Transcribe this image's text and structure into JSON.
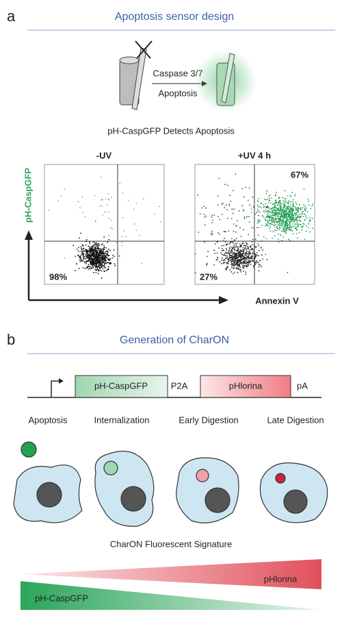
{
  "panel_a": {
    "label": "a",
    "title": "Apoptosis sensor design",
    "arrow_top": "Caspase 3/7",
    "arrow_bottom": "Apoptosis",
    "caption": "pH-CaspGFP Detects Apoptosis",
    "y_axis": "pH-CaspGFP",
    "x_axis": "Annexin V",
    "plots": [
      {
        "title": "-UV",
        "lower_label": "98%"
      },
      {
        "title": "+UV 4 h",
        "lower_label": "27%",
        "upper_label": "67%"
      }
    ]
  },
  "panel_b": {
    "label": "b",
    "title": "Generation of CharON",
    "construct": [
      "pH-CaspGFP",
      "P2A",
      "pHlorina",
      "pA"
    ],
    "stages": [
      "Apoptosis",
      "Internalization",
      "Early Digestion",
      "Late Digestion"
    ],
    "caption": "CharON Fluorescent Signature",
    "gradient_labels": [
      "pHlorina",
      "pH-CaspGFP"
    ]
  }
}
